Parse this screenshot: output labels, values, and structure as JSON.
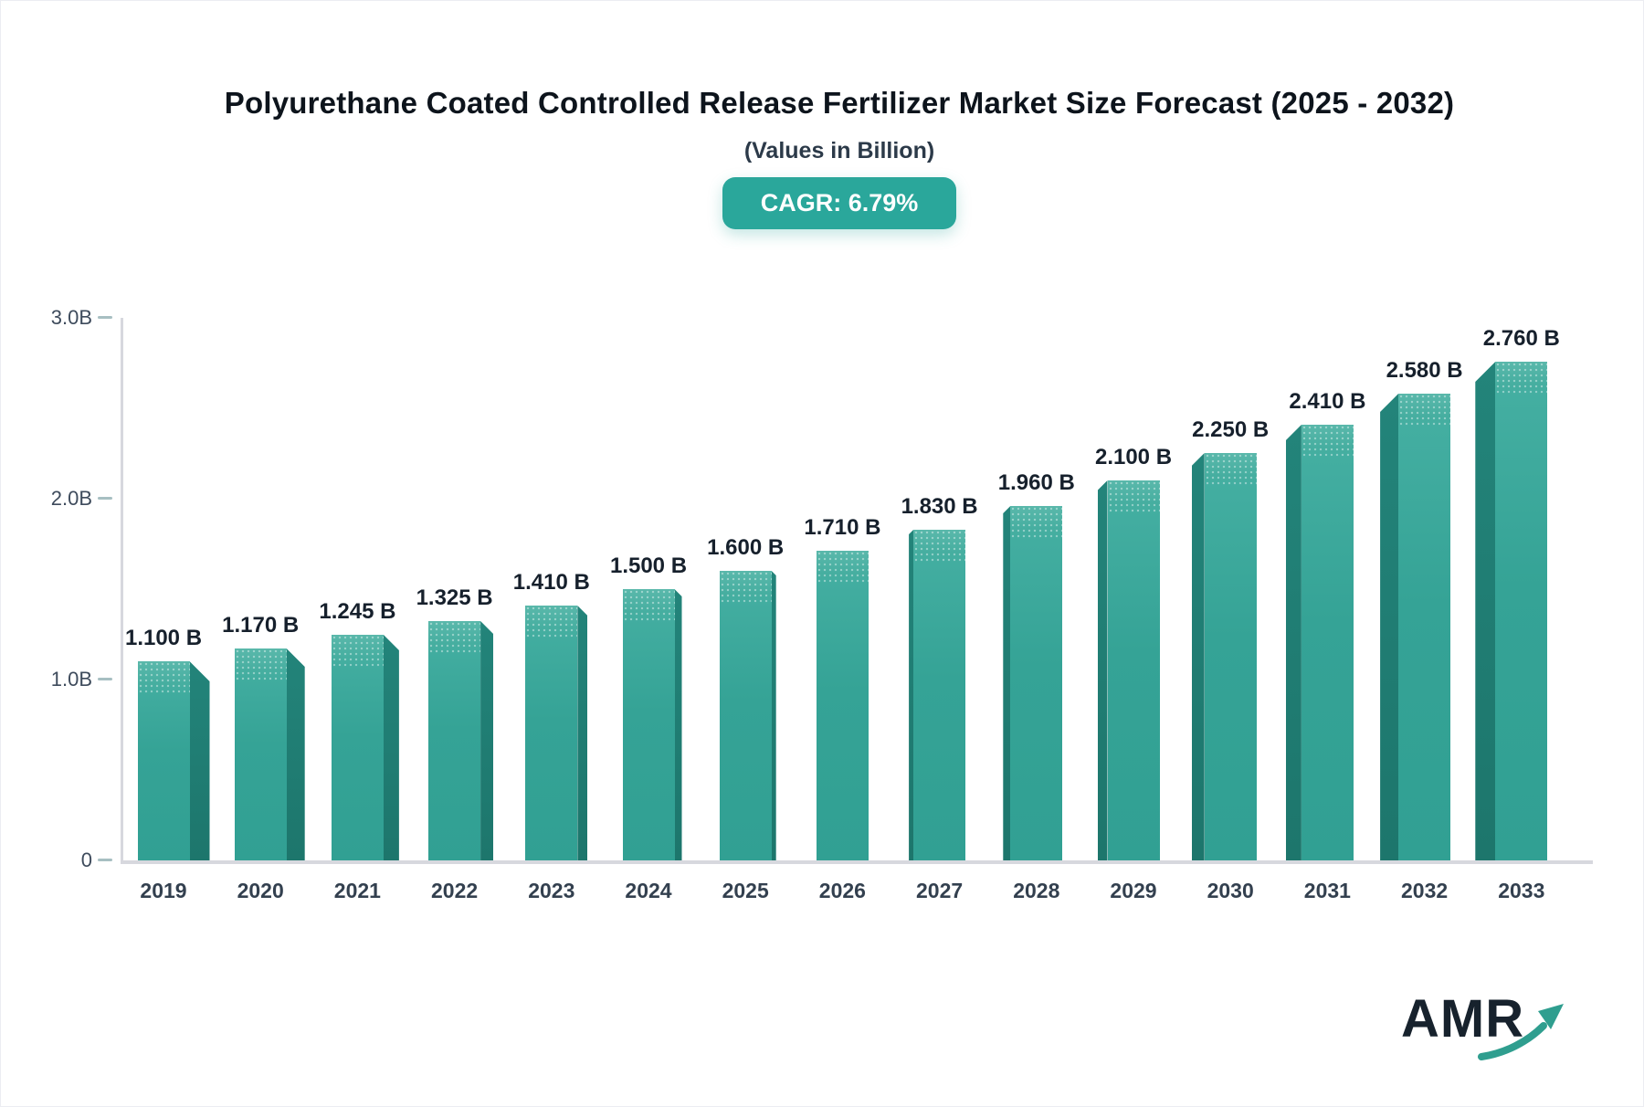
{
  "header": {
    "title": "Polyurethane Coated Controlled Release Fertilizer Market Size Forecast (2025 - 2032)",
    "subtitle": "(Values in Billion)",
    "cagr_label": "CAGR: 6.79%"
  },
  "logo": {
    "text": "AMR",
    "arrow_icon": "growth-arrow-icon"
  },
  "colors": {
    "accent_teal": "#2aa79b",
    "bar_front": "#35a396",
    "bar_side": "#1f7c71",
    "bar_top_band": "#5ab8ab",
    "badge_background": "#2aa79b",
    "badge_text": "#ffffff",
    "axis_line": "#d7d8de",
    "tick_mark": "#a7bfc2",
    "title_text": "#0d141c",
    "axis_label_text": "#3e4b5c",
    "value_label_text": "#16202c"
  },
  "chart_data": {
    "type": "bar",
    "title": "Polyurethane Coated Controlled Release Fertilizer Market Size Forecast (2025 - 2032)",
    "subtitle": "(Values in Billion)",
    "cagr_percent": 6.79,
    "unit": "Billion",
    "categories": [
      "2019",
      "2020",
      "2021",
      "2022",
      "2023",
      "2024",
      "2025",
      "2026",
      "2027",
      "2028",
      "2029",
      "2030",
      "2031",
      "2032",
      "2033"
    ],
    "values": [
      1.1,
      1.17,
      1.245,
      1.325,
      1.41,
      1.5,
      1.6,
      1.71,
      1.83,
      1.96,
      2.1,
      2.25,
      2.41,
      2.58,
      2.76
    ],
    "display_labels": [
      "1.100 B",
      "1.170 B",
      "1.245 B",
      "1.325 B",
      "1.410 B",
      "1.500 B",
      "1.600 B",
      "1.710 B",
      "1.830 B",
      "1.960 B",
      "2.100 B",
      "2.250 B",
      "2.410 B",
      "2.580 B",
      "2.760 B"
    ],
    "y_ticks": [
      {
        "value": 0,
        "label": "0"
      },
      {
        "value": 1,
        "label": "1.0B"
      },
      {
        "value": 2,
        "label": "2.0B"
      },
      {
        "value": 3,
        "label": "3.0B"
      }
    ],
    "ylim": [
      0,
      3
    ],
    "xlabel": "",
    "ylabel": "",
    "grid": false,
    "legend": "none",
    "bar_style": "3d-perspective, vanishing point at 2026"
  }
}
